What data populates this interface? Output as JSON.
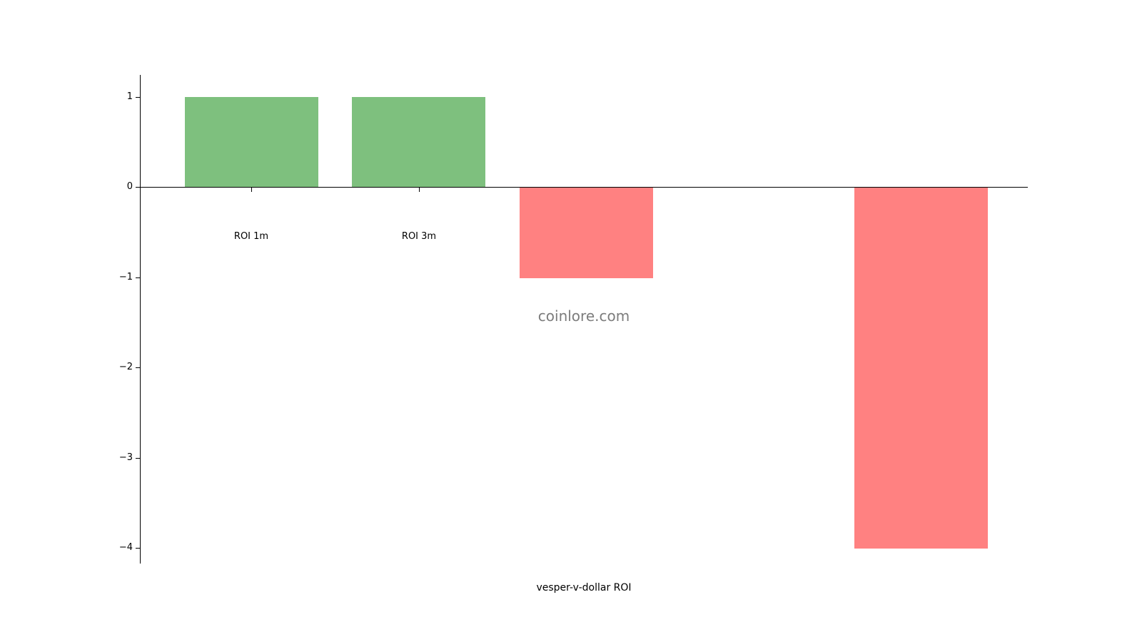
{
  "chart_data": {
    "type": "bar",
    "title": "",
    "xlabel": "vesper-v-dollar ROI",
    "ylabel": "",
    "watermark": "coinlore.com",
    "categories": [
      "ROI 1m",
      "ROI 3m",
      "",
      ""
    ],
    "values": [
      1,
      1,
      -1,
      -4
    ],
    "x_slots": [
      0,
      1,
      2,
      4
    ],
    "bar_colors": [
      "#7EC07E",
      "#7EC07E",
      "#FF8181",
      "#FF8181"
    ],
    "yticks": [
      {
        "v": 1,
        "label": "1"
      },
      {
        "v": 0,
        "label": "0"
      },
      {
        "v": -1,
        "label": "−1"
      },
      {
        "v": -2,
        "label": "−2"
      },
      {
        "v": -3,
        "label": "−3"
      },
      {
        "v": -4,
        "label": "−4"
      }
    ],
    "ylim": [
      -4.17,
      1.24
    ],
    "grid": false,
    "legend": null,
    "colors": {
      "positive": "#7EC07E",
      "negative": "#FF8181",
      "axis": "#000000",
      "tick_text": "#000000",
      "watermark_text": "#7c7c7c"
    }
  }
}
